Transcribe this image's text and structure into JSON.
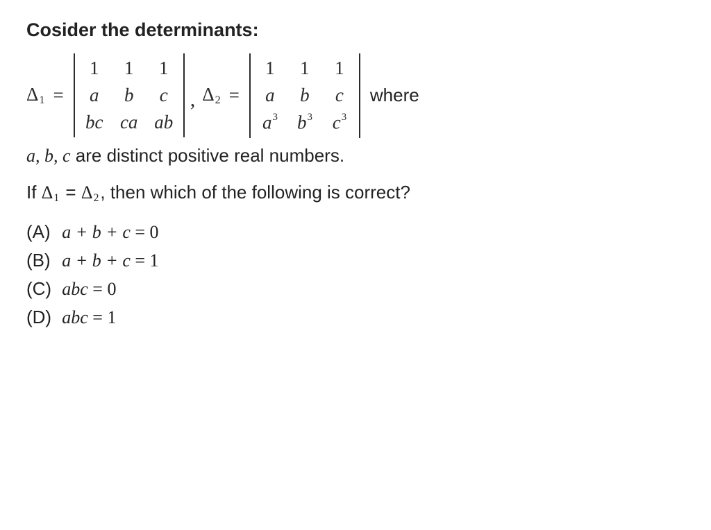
{
  "colors": {
    "text": "#2b2b2b",
    "heading": "#222222",
    "background": "#ffffff"
  },
  "typography": {
    "heading_font": "Segoe UI",
    "heading_size_pt": 20,
    "heading_weight": 600,
    "body_font": "Segoe UI",
    "body_size_pt": 19,
    "math_font": "Georgia",
    "math_style": "italic",
    "math_size_pt": 20
  },
  "heading": "Cosider the determinants:",
  "eq_symbol": "=",
  "comma": ",",
  "where": "where",
  "det1": {
    "name_symbol": "Δ",
    "name_sub": "1",
    "rows": [
      [
        "1",
        "1",
        "1"
      ],
      [
        "a",
        "b",
        "c"
      ],
      [
        "bc",
        "ca",
        "ab"
      ]
    ]
  },
  "det2": {
    "name_symbol": "Δ",
    "name_sub": "2",
    "rows": [
      [
        "1",
        "1",
        "1"
      ],
      [
        "a",
        "b",
        "c"
      ],
      [
        "a³",
        "b³",
        "c³"
      ]
    ],
    "row3_display": [
      {
        "base": "a",
        "sup": "3"
      },
      {
        "base": "b",
        "sup": "3"
      },
      {
        "base": "c",
        "sup": "3"
      }
    ]
  },
  "condition_line": {
    "math_prefix": "a, b, c",
    "text": " are distinct positive real numbers."
  },
  "question": {
    "prefix": "If ",
    "d1_symbol": "Δ",
    "d1_sub": "1",
    "eq": " = ",
    "d2_symbol": "Δ",
    "d2_sub": "2",
    "suffix": ", then which of the following is correct?"
  },
  "options": [
    {
      "label": "(A)",
      "expr_math": "a + b + c",
      "eq": " = ",
      "rhs": "0"
    },
    {
      "label": "(B)",
      "expr_math": "a + b + c",
      "eq": " = ",
      "rhs": "1"
    },
    {
      "label": "(C)",
      "expr_math": "abc",
      "eq": " = ",
      "rhs": "0"
    },
    {
      "label": "(D)",
      "expr_math": "abc",
      "eq": " = ",
      "rhs": "1"
    }
  ]
}
